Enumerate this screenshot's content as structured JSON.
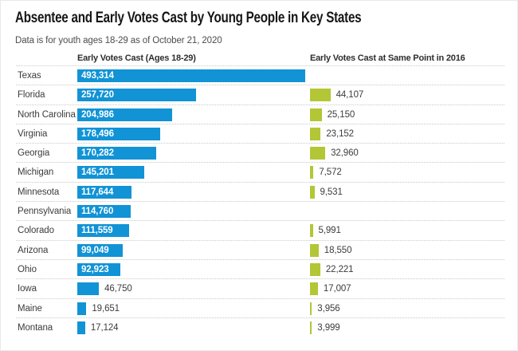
{
  "title": "Absentee and Early Votes Cast by Young People in Key States",
  "subtitle": "Data is for youth ages 18-29 as of October 21, 2020",
  "columns": {
    "early_2020": "Early Votes Cast (Ages 18-29)",
    "early_2016": "Early Votes Cast at Same Point in 2016"
  },
  "colors": {
    "blue": "#1193d6",
    "green": "#b3c636",
    "text": "#3c3c3c",
    "separator": "#c9c9c9"
  },
  "chart_data": {
    "type": "bar",
    "orientation": "horizontal",
    "title": "Absentee and Early Votes Cast by Young People in Key States",
    "subtitle": "Data is for youth ages 18-29 as of October 21, 2020",
    "x_max": 493314,
    "grid": false,
    "legend_position": "column-headers",
    "series_names": [
      "Early Votes Cast (Ages 18-29)",
      "Early Votes Cast at Same Point in 2016"
    ],
    "categories": [
      "Texas",
      "Florida",
      "North Carolina",
      "Virginia",
      "Georgia",
      "Michigan",
      "Minnesota",
      "Pennsylvania",
      "Colorado",
      "Arizona",
      "Ohio",
      "Iowa",
      "Maine",
      "Montana"
    ],
    "rows": [
      {
        "state": "Texas",
        "votes_2020": 493314,
        "votes_2020_label": "493,314",
        "votes_2016": null,
        "votes_2016_label": ""
      },
      {
        "state": "Florida",
        "votes_2020": 257720,
        "votes_2020_label": "257,720",
        "votes_2016": 44107,
        "votes_2016_label": "44,107"
      },
      {
        "state": "North Carolina",
        "votes_2020": 204986,
        "votes_2020_label": "204,986",
        "votes_2016": 25150,
        "votes_2016_label": "25,150"
      },
      {
        "state": "Virginia",
        "votes_2020": 178496,
        "votes_2020_label": "178,496",
        "votes_2016": 23152,
        "votes_2016_label": "23,152"
      },
      {
        "state": "Georgia",
        "votes_2020": 170282,
        "votes_2020_label": "170,282",
        "votes_2016": 32960,
        "votes_2016_label": "32,960"
      },
      {
        "state": "Michigan",
        "votes_2020": 145201,
        "votes_2020_label": "145,201",
        "votes_2016": 7572,
        "votes_2016_label": "7,572"
      },
      {
        "state": "Minnesota",
        "votes_2020": 117644,
        "votes_2020_label": "117,644",
        "votes_2016": 9531,
        "votes_2016_label": "9,531"
      },
      {
        "state": "Pennsylvania",
        "votes_2020": 114760,
        "votes_2020_label": "114,760",
        "votes_2016": null,
        "votes_2016_label": ""
      },
      {
        "state": "Colorado",
        "votes_2020": 111559,
        "votes_2020_label": "111,559",
        "votes_2016": 5991,
        "votes_2016_label": "5,991"
      },
      {
        "state": "Arizona",
        "votes_2020": 99049,
        "votes_2020_label": "99,049",
        "votes_2016": 18550,
        "votes_2016_label": "18,550"
      },
      {
        "state": "Ohio",
        "votes_2020": 92923,
        "votes_2020_label": "92,923",
        "votes_2016": 22221,
        "votes_2016_label": "22,221"
      },
      {
        "state": "Iowa",
        "votes_2020": 46750,
        "votes_2020_label": "46,750",
        "votes_2016": 17007,
        "votes_2016_label": "17,007"
      },
      {
        "state": "Maine",
        "votes_2020": 19651,
        "votes_2020_label": "19,651",
        "votes_2016": 3956,
        "votes_2016_label": "3,956"
      },
      {
        "state": "Montana",
        "votes_2020": 17124,
        "votes_2020_label": "17,124",
        "votes_2016": 3999,
        "votes_2016_label": "3,999"
      }
    ]
  }
}
